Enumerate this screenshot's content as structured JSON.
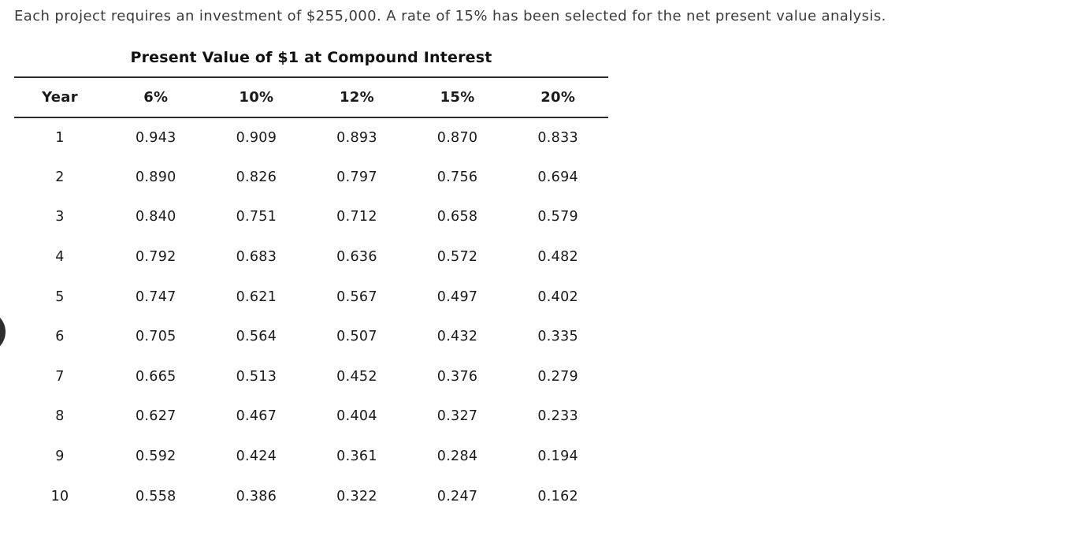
{
  "intro": {
    "text": "Each project requires an investment of $255,000. A rate of 15% has been selected for the net present value analysis."
  },
  "table": {
    "title": "Present Value of $1 at Compound Interest",
    "columns": [
      "Year",
      "6%",
      "10%",
      "12%",
      "15%",
      "20%"
    ],
    "rows": [
      [
        "1",
        "0.943",
        "0.909",
        "0.893",
        "0.870",
        "0.833"
      ],
      [
        "2",
        "0.890",
        "0.826",
        "0.797",
        "0.756",
        "0.694"
      ],
      [
        "3",
        "0.840",
        "0.751",
        "0.712",
        "0.658",
        "0.579"
      ],
      [
        "4",
        "0.792",
        "0.683",
        "0.636",
        "0.572",
        "0.482"
      ],
      [
        "5",
        "0.747",
        "0.621",
        "0.567",
        "0.497",
        "0.402"
      ],
      [
        "6",
        "0.705",
        "0.564",
        "0.507",
        "0.432",
        "0.335"
      ],
      [
        "7",
        "0.665",
        "0.513",
        "0.452",
        "0.376",
        "0.279"
      ],
      [
        "8",
        "0.627",
        "0.467",
        "0.404",
        "0.327",
        "0.233"
      ],
      [
        "9",
        "0.592",
        "0.424",
        "0.361",
        "0.284",
        "0.194"
      ],
      [
        "10",
        "0.558",
        "0.386",
        "0.322",
        "0.247",
        "0.162"
      ]
    ]
  },
  "colors": {
    "background": "#ffffff",
    "intro_text": "#3a3a3a",
    "table_text": "#1a1a1a",
    "rule": "#2d2d2d",
    "partial_circle": "#2e2e2e"
  }
}
